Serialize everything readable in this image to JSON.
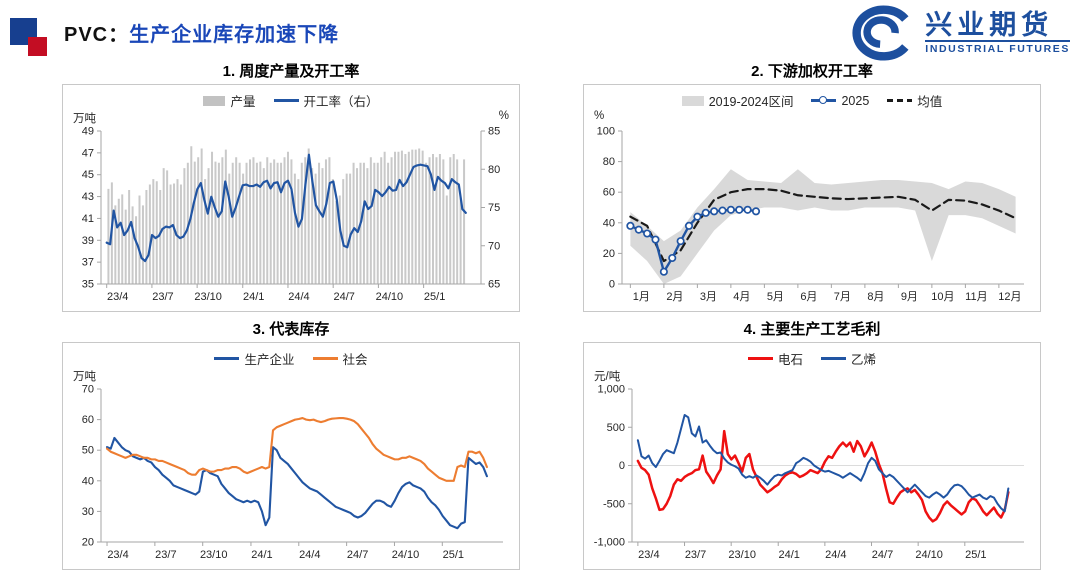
{
  "header": {
    "product": "PVC：",
    "headline": "生产企业库存加速下降",
    "accent_blue": "#1a47b8",
    "mark_blue": "#173f8f",
    "mark_red": "#c30d23",
    "logo": {
      "cn": "兴业期货",
      "en": "INDUSTRIAL FUTURES",
      "color": "#1d4f9e"
    }
  },
  "chart_data": [
    {
      "type": "bar",
      "title": "1. 周度产量及开工率",
      "unit_left": "万吨",
      "unit_right": "%",
      "axes": {
        "left": {
          "min": 35,
          "max": 49,
          "step": 2
        },
        "right": {
          "min": 65,
          "max": 85,
          "step": 5
        }
      },
      "x_ticks": {
        "labels": [
          "23/4",
          "23/7",
          "23/10",
          "24/1",
          "24/4",
          "24/7",
          "24/10",
          "25/1"
        ],
        "fracs": [
          0.015,
          0.134,
          0.253,
          0.373,
          0.492,
          0.611,
          0.73,
          0.849
        ]
      },
      "legend": [
        {
          "label": "产量",
          "swatch": "bar",
          "color": "#c2c2c2"
        },
        {
          "label": "开工率（右）",
          "swatch": "line",
          "color": "#2155a3"
        }
      ],
      "bars": {
        "name": "产量",
        "axis": "left",
        "color": "#c9c9c9",
        "values": [
          43.7,
          44.3,
          42.2,
          42.8,
          43.2,
          41.8,
          43.6,
          42.1,
          41.2,
          43.1,
          42.2,
          43.6,
          44.1,
          44.6,
          44.4,
          43.6,
          45.6,
          45.4,
          44.1,
          44.2,
          44.6,
          44.1,
          45.6,
          46.1,
          47.6,
          46.2,
          46.6,
          47.4,
          44.6,
          45.6,
          47.1,
          46.2,
          46.1,
          46.6,
          47.3,
          45.1,
          46.1,
          46.6,
          46.1,
          45.1,
          46.1,
          46.4,
          46.6,
          46.1,
          46.2,
          45.6,
          46.6,
          46.1,
          46.4,
          46.1,
          46.1,
          46.6,
          47.1,
          46.4,
          45.1,
          44.6,
          46.1,
          46.6,
          47.4,
          45.6,
          45.1,
          46.1,
          45.6,
          46.4,
          46.6,
          44.6,
          42.6,
          43.1,
          44.6,
          45.1,
          45.1,
          46.1,
          45.6,
          46.1,
          46.1,
          45.6,
          46.6,
          46.1,
          46.1,
          46.6,
          47.1,
          46.1,
          46.6,
          47.1,
          47.1,
          47.2,
          46.9,
          47.1,
          47.3,
          47.3,
          47.4,
          47.2,
          46.1,
          46.6,
          46.9,
          46.6,
          46.9,
          46.4,
          43.1,
          46.6,
          46.9,
          46.4,
          42.9,
          46.4
        ]
      },
      "lines": [
        {
          "name": "开工率（右）",
          "axis": "right",
          "color": "#2155a3",
          "width": 2.2,
          "values": [
            70.4,
            70.2,
            74.6,
            72.4,
            73.0,
            71.4,
            72.0,
            73.1,
            71.0,
            69.9,
            68.4,
            68.0,
            68.8,
            71.4,
            71.0,
            71.3,
            72.2,
            72.5,
            72.4,
            72.7,
            71.4,
            71.0,
            71.2,
            72.0,
            73.5,
            75.6,
            77.4,
            78.2,
            76.0,
            74.2,
            76.4,
            75.0,
            73.8,
            74.5,
            78.4,
            76.4,
            73.8,
            75.0,
            76.5,
            77.9,
            78.0,
            77.8,
            77.8,
            78.0,
            77.7,
            78.3,
            78.5,
            77.5,
            78.2,
            78.3,
            77.0,
            78.2,
            78.5,
            77.4,
            74.3,
            72.5,
            73.5,
            78.0,
            81.9,
            78.4,
            75.3,
            74.5,
            73.8,
            75.5,
            78.2,
            78.4,
            76.0,
            72.0,
            70.0,
            69.8,
            71.5,
            72.3,
            71.8,
            73.2,
            75.8,
            74.8,
            75.2,
            77.3,
            77.0,
            76.5,
            77.0,
            77.7,
            77.2,
            77.3,
            78.6,
            77.8,
            78.3,
            79.3,
            80.3,
            80.5,
            80.6,
            80.5,
            80.4,
            79.3,
            77.3,
            79.0,
            78.5,
            78.2,
            77.5,
            78.7,
            78.3,
            78.0,
            74.8,
            74.3
          ]
        }
      ]
    },
    {
      "type": "area-band",
      "title": "2. 下游加权开工率",
      "unit_left": "%",
      "axes": {
        "left": {
          "min": 0,
          "max": 100,
          "step": 20
        }
      },
      "x_domain": [
        0.75,
        12.75
      ],
      "x_ticks": {
        "labels": [
          "1月",
          "2月",
          "3月",
          "4月",
          "5月",
          "6月",
          "7月",
          "8月",
          "9月",
          "10月",
          "11月",
          "12月"
        ],
        "fracs": [
          0.0208,
          0.1042,
          0.1875,
          0.2708,
          0.3542,
          0.4375,
          0.5208,
          0.6042,
          0.6875,
          0.7708,
          0.8542,
          0.9375
        ]
      },
      "legend": [
        {
          "label": "2019-2024区间",
          "swatch": "bar",
          "color": "#d9d9d9"
        },
        {
          "label": "2025",
          "swatch": "line-marker",
          "color": "#2155a3"
        },
        {
          "label": "均值",
          "swatch": "dash",
          "color": "#1a1a1a"
        }
      ],
      "band": {
        "name": "2019-2024区间",
        "color": "#d9d9d9",
        "x": [
          1,
          1.5,
          2,
          2.5,
          3,
          3.5,
          4,
          4.5,
          5,
          5.5,
          6,
          6.5,
          7,
          7.5,
          8,
          8.5,
          9,
          9.5,
          10,
          10.5,
          11,
          11.5,
          12,
          12.5
        ],
        "upper": [
          47,
          38,
          28,
          35,
          50,
          62,
          75,
          68,
          67,
          66,
          75,
          66,
          65,
          66,
          67,
          68,
          68,
          67,
          66,
          62,
          67,
          66,
          62,
          57
        ],
        "lower": [
          25,
          15,
          0,
          5,
          20,
          35,
          45,
          48,
          50,
          50,
          48,
          50,
          48,
          48,
          50,
          50,
          50,
          48,
          15,
          45,
          45,
          43,
          38,
          33
        ]
      },
      "lines": [
        {
          "name": "均值",
          "color": "#1a1a1a",
          "width": 2.2,
          "dash": "8 5",
          "x": [
            1,
            1.5,
            2,
            2.5,
            3,
            3.5,
            4,
            4.5,
            5,
            5.5,
            6,
            6.5,
            7,
            7.5,
            8,
            8.5,
            9,
            9.5,
            10,
            10.5,
            11,
            11.5,
            12,
            12.5
          ],
          "values": [
            44,
            38,
            15,
            22,
            40,
            55,
            60,
            62,
            62,
            61,
            58,
            57,
            56,
            55.5,
            56,
            56.5,
            57,
            55,
            48,
            55,
            54.5,
            52,
            48,
            43
          ]
        },
        {
          "name": "2025",
          "color": "#2155a3",
          "width": 2.4,
          "markers": true,
          "x": [
            1,
            1.25,
            1.5,
            1.75,
            2,
            2.25,
            2.5,
            2.75,
            3,
            3.25,
            3.5,
            3.75,
            4,
            4.25,
            4.5,
            4.75
          ],
          "values": [
            38,
            35.5,
            33,
            29,
            8,
            17,
            28,
            38,
            44,
            46.5,
            47.5,
            48,
            48.5,
            48.5,
            48.5,
            47.5
          ]
        }
      ]
    },
    {
      "type": "line",
      "title": "3. 代表库存",
      "unit_left": "万吨",
      "axes": {
        "left": {
          "min": 20,
          "max": 70,
          "step": 10
        }
      },
      "x_ticks": {
        "labels": [
          "23/4",
          "23/7",
          "23/10",
          "24/1",
          "24/4",
          "24/7",
          "24/10",
          "25/1"
        ],
        "fracs": [
          0.015,
          0.134,
          0.253,
          0.373,
          0.492,
          0.611,
          0.73,
          0.849
        ]
      },
      "legend": [
        {
          "label": "生产企业",
          "swatch": "line",
          "color": "#2155a3"
        },
        {
          "label": "社会",
          "swatch": "line",
          "color": "#ed7d31"
        }
      ],
      "lines": [
        {
          "name": "生产企业",
          "color": "#2155a3",
          "width": 2.1,
          "values": [
            51.0,
            50.5,
            54.0,
            52.5,
            51.0,
            50.0,
            49.5,
            48.0,
            47.5,
            47.0,
            47.5,
            46.5,
            46.0,
            44.5,
            43.5,
            42.0,
            41.0,
            40.0,
            38.5,
            38.0,
            37.5,
            37.0,
            36.5,
            36.0,
            35.5,
            36.5,
            43.0,
            43.5,
            42.5,
            42.0,
            41.5,
            39.0,
            37.5,
            36.0,
            35.0,
            34.0,
            33.5,
            33.0,
            33.5,
            33.0,
            33.5,
            33.0,
            30.0,
            25.5,
            28.0,
            51.0,
            50.0,
            47.5,
            46.5,
            45.5,
            44.0,
            42.5,
            41.0,
            39.5,
            38.5,
            37.5,
            37.0,
            36.5,
            35.5,
            34.5,
            33.5,
            32.5,
            31.5,
            31.0,
            30.5,
            30.0,
            29.5,
            28.5,
            28.0,
            28.5,
            29.5,
            31.0,
            32.5,
            33.5,
            33.5,
            33.0,
            32.0,
            31.5,
            33.5,
            36.0,
            38.0,
            39.0,
            39.5,
            38.5,
            38.0,
            37.5,
            36.5,
            34.5,
            33.0,
            32.0,
            30.5,
            28.5,
            27.0,
            25.5,
            25.0,
            24.5,
            26.0,
            26.5,
            47.5,
            46.5,
            45.5,
            46.0,
            44.5,
            41.5
          ]
        },
        {
          "name": "社会",
          "color": "#ed7d31",
          "width": 2.1,
          "values": [
            50.5,
            49.5,
            49.0,
            48.5,
            48.0,
            47.5,
            48.0,
            48.5,
            48.5,
            48.0,
            47.5,
            47.5,
            47.0,
            47.0,
            46.5,
            46.5,
            46.0,
            45.5,
            45.0,
            44.5,
            44.0,
            43.5,
            42.5,
            42.0,
            42.0,
            43.5,
            44.0,
            43.5,
            43.0,
            43.0,
            43.5,
            43.5,
            44.0,
            44.0,
            44.5,
            44.5,
            44.0,
            43.0,
            42.5,
            43.0,
            43.5,
            44.0,
            44.5,
            44.0,
            44.5,
            56.5,
            57.5,
            58.0,
            58.5,
            59.0,
            59.5,
            60.0,
            60.2,
            60.5,
            60.0,
            59.8,
            60.0,
            59.5,
            59.2,
            59.5,
            60.0,
            60.3,
            60.4,
            60.5,
            60.5,
            60.3,
            60.0,
            59.5,
            58.5,
            57.0,
            55.5,
            54.0,
            52.0,
            50.5,
            49.5,
            48.5,
            48.0,
            47.5,
            47.0,
            47.0,
            47.5,
            47.5,
            48.0,
            47.5,
            47.0,
            46.5,
            45.5,
            44.0,
            43.0,
            42.0,
            41.0,
            40.5,
            40.0,
            40.0,
            40.0,
            44.5,
            45.0,
            44.5,
            49.5,
            49.5,
            49.0,
            49.5,
            47.5,
            44.5
          ]
        }
      ]
    },
    {
      "type": "line",
      "title": "4. 主要生产工艺毛利",
      "unit_left": "元/吨",
      "axes": {
        "left": {
          "min": -1000,
          "max": 1000,
          "step": 500,
          "fmt": "comma"
        }
      },
      "zero_line": true,
      "x_ticks": {
        "labels": [
          "23/4",
          "23/7",
          "23/10",
          "24/1",
          "24/4",
          "24/7",
          "24/10",
          "25/1"
        ],
        "fracs": [
          0.015,
          0.134,
          0.253,
          0.373,
          0.492,
          0.611,
          0.73,
          0.849
        ]
      },
      "legend": [
        {
          "label": "电石",
          "swatch": "line",
          "color": "#ee1111"
        },
        {
          "label": "乙烯",
          "swatch": "line",
          "color": "#2155a3"
        }
      ],
      "lines": [
        {
          "name": "电石",
          "color": "#ee1111",
          "width": 2.5,
          "values": [
            60,
            -30,
            -60,
            -120,
            -300,
            -430,
            -580,
            -570,
            -500,
            -400,
            -250,
            -180,
            -200,
            -150,
            -120,
            -100,
            -60,
            -50,
            130,
            -80,
            -150,
            -230,
            -130,
            -50,
            450,
            150,
            80,
            130,
            30,
            -80,
            100,
            150,
            -50,
            -150,
            -250,
            -300,
            -350,
            -320,
            -280,
            -250,
            -180,
            -130,
            -100,
            -90,
            -110,
            -150,
            -130,
            -100,
            -60,
            -80,
            -100,
            -50,
            50,
            120,
            100,
            180,
            250,
            300,
            250,
            300,
            180,
            320,
            250,
            120,
            200,
            300,
            180,
            20,
            -100,
            -300,
            -480,
            -500,
            -420,
            -350,
            -320,
            -300,
            -350,
            -320,
            -380,
            -450,
            -600,
            -680,
            -730,
            -700,
            -620,
            -520,
            -470,
            -520,
            -560,
            -600,
            -640,
            -600,
            -480,
            -430,
            -450,
            -520,
            -600,
            -650,
            -600,
            -550,
            -630,
            -680,
            -580,
            -350
          ]
        },
        {
          "name": "乙烯",
          "color": "#2155a3",
          "width": 2.0,
          "values": [
            330,
            120,
            90,
            130,
            30,
            -20,
            60,
            150,
            200,
            180,
            160,
            300,
            480,
            660,
            630,
            420,
            380,
            510,
            300,
            330,
            260,
            200,
            160,
            170,
            90,
            40,
            10,
            -10,
            -40,
            -120,
            -160,
            -140,
            -160,
            -130,
            -160,
            -200,
            -250,
            -190,
            -140,
            -120,
            -130,
            -100,
            -80,
            -60,
            30,
            60,
            100,
            80,
            50,
            0,
            -30,
            -60,
            -80,
            -70,
            -90,
            -110,
            -130,
            -160,
            -130,
            -100,
            -130,
            -160,
            -200,
            -100,
            30,
            100,
            60,
            -50,
            -100,
            -150,
            -120,
            -150,
            -200,
            -250,
            -300,
            -350,
            -300,
            -250,
            -300,
            -350,
            -400,
            -420,
            -380,
            -350,
            -380,
            -420,
            -380,
            -310,
            -260,
            -250,
            -270,
            -320,
            -380,
            -420,
            -400,
            -380,
            -420,
            -440,
            -400,
            -420,
            -500,
            -560,
            -600,
            -300
          ]
        }
      ]
    }
  ]
}
